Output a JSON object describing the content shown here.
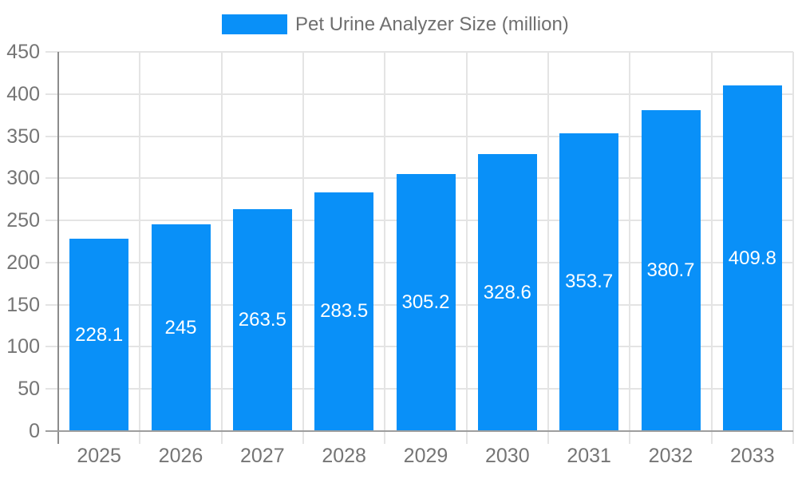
{
  "chart_data": {
    "type": "bar",
    "title": "Pet Urine Analyzer Size (million)",
    "legend_entries": [
      "Pet Urine Analyzer Size (million)"
    ],
    "legend_position": "top-center",
    "categories": [
      "2025",
      "2026",
      "2027",
      "2028",
      "2029",
      "2030",
      "2031",
      "2032",
      "2033"
    ],
    "values": [
      228.1,
      245,
      263.5,
      283.5,
      305.2,
      328.6,
      353.7,
      380.7,
      409.8
    ],
    "value_labels": [
      "228.1",
      "245",
      "263.5",
      "283.5",
      "305.2",
      "328.6",
      "353.7",
      "380.7",
      "409.8"
    ],
    "xlabel": "",
    "ylabel": "",
    "ylim": [
      0,
      450
    ],
    "ytick_step": 50,
    "ytick_labels": [
      "0",
      "50",
      "100",
      "150",
      "200",
      "250",
      "300",
      "350",
      "400",
      "450"
    ],
    "grid": true,
    "colors": {
      "bar": "#0990f8",
      "grid": "#e4e4e4",
      "x_axis": "#9e9e9e",
      "y_axis": "#8c8c8c",
      "tick_label": "#757575",
      "legend_text": "#6f6f6f",
      "value_label": "#ffffff",
      "background": "#ffffff"
    }
  }
}
